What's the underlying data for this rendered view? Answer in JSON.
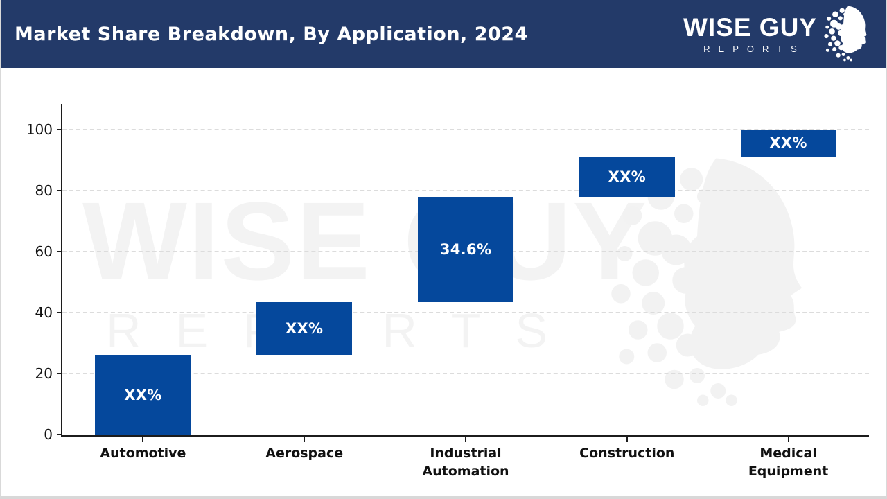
{
  "header": {
    "title": "Market Share Breakdown, By Application, 2024",
    "logo": {
      "line1": "WISE GUY",
      "line2": "REPORTS",
      "face_icon": "dotted-head-profile"
    }
  },
  "watermark": {
    "line1": "WISE GUY",
    "line2": "REPORTS",
    "face_icon": "dotted-head-profile"
  },
  "chart_data": {
    "type": "bar",
    "subtype": "waterfall",
    "title": "Market Share Breakdown, By Application, 2024",
    "xlabel": "",
    "ylabel": "",
    "categories": [
      "Automotive",
      "Aerospace",
      "Industrial Automation",
      "Construction",
      "Medical Equipment"
    ],
    "bars": [
      {
        "category": "Automotive",
        "start": 0,
        "end": 26.1,
        "label": "XX%"
      },
      {
        "category": "Aerospace",
        "start": 26.1,
        "end": 43.4,
        "label": "XX%"
      },
      {
        "category": "Industrial Automation",
        "start": 43.4,
        "end": 78.0,
        "label": "34.6%"
      },
      {
        "category": "Construction",
        "start": 78.0,
        "end": 91.2,
        "label": "XX%"
      },
      {
        "category": "Medical Equipment",
        "start": 91.2,
        "end": 100,
        "label": "XX%"
      }
    ],
    "yticks": [
      0,
      20,
      40,
      60,
      80,
      100
    ],
    "ylim": [
      0,
      108
    ],
    "grid": "horizontal-dashed",
    "legend": "none",
    "bar_color": "#05489c",
    "bar_label_color": "#ffffff",
    "axis_color": "#1c1c1c",
    "gridline_color": "#dcdcdc"
  },
  "colors": {
    "header_bg": "#233a69",
    "header_text": "#ffffff",
    "watermark": "#f3f3f3",
    "background": "#ffffff"
  }
}
